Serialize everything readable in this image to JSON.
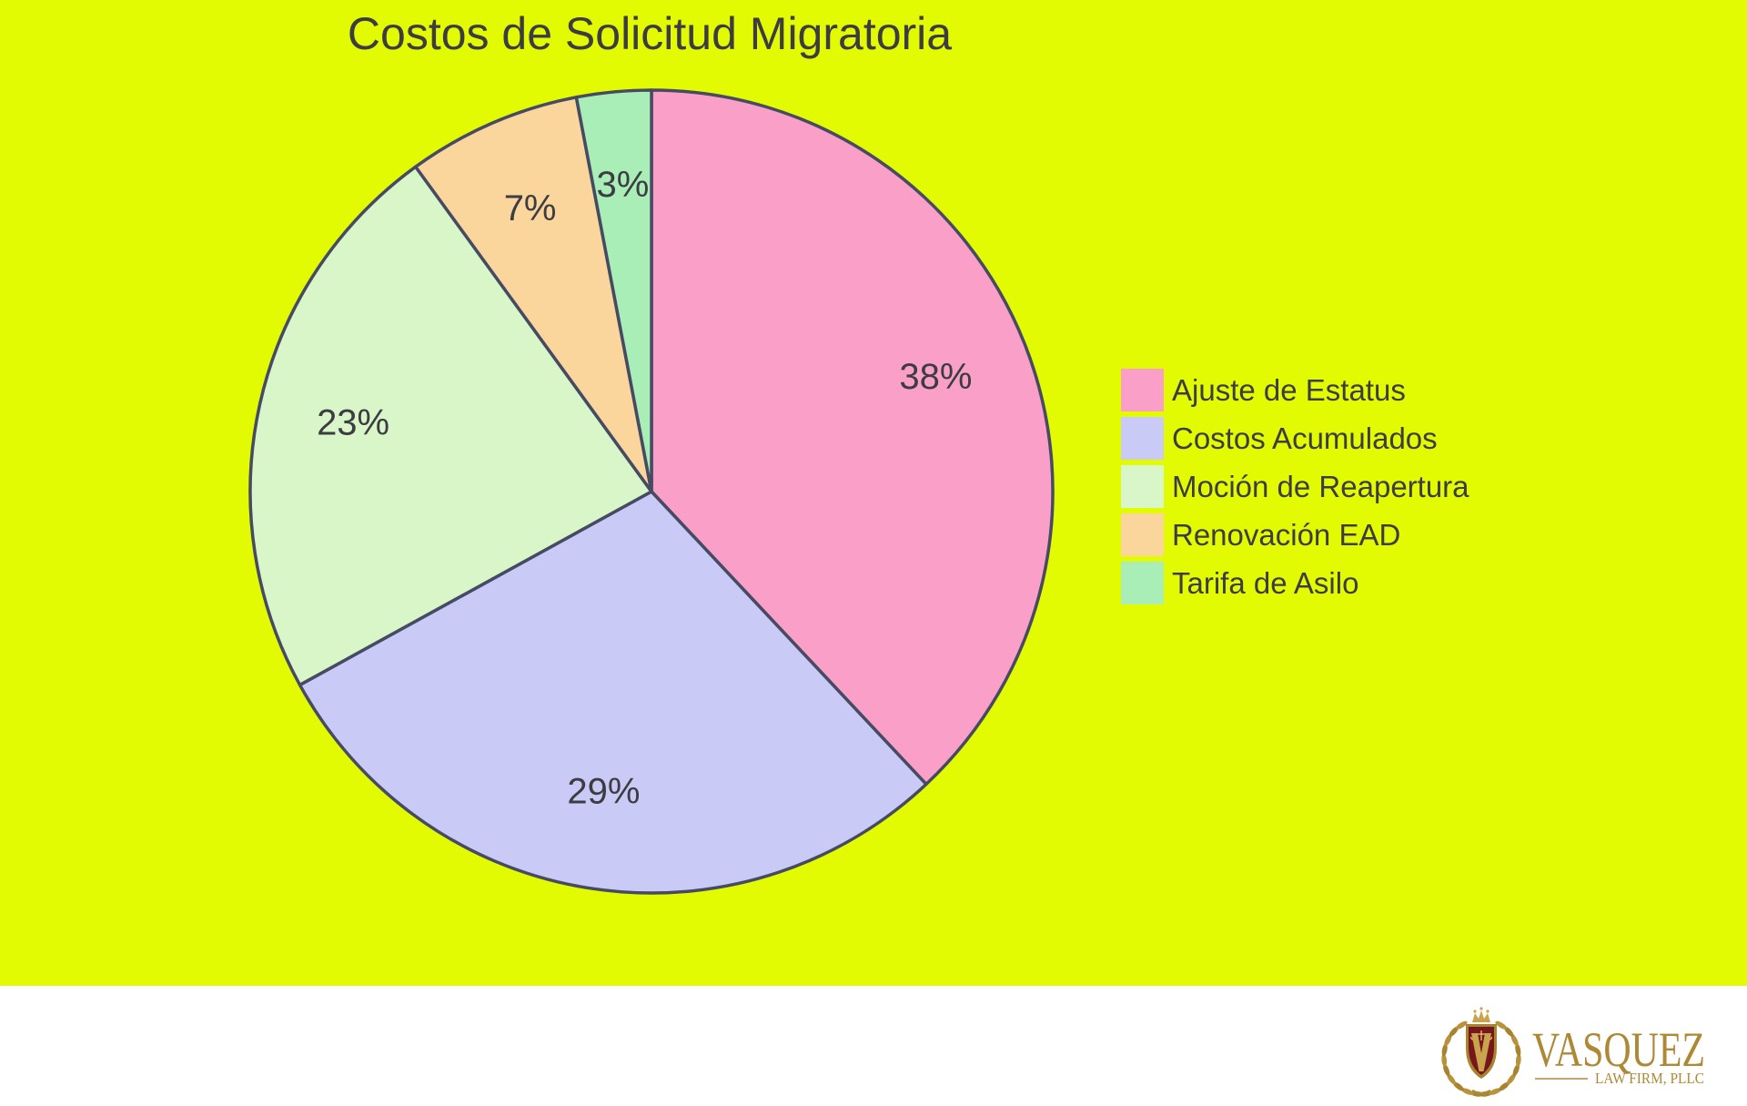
{
  "chart_data": {
    "type": "pie",
    "title": "Costos de Solicitud Migratoria",
    "labels": [
      "Ajuste de Estatus",
      "Costos Acumulados",
      "Moción de Reapertura",
      "Renovación EAD",
      "Tarifa de Asilo"
    ],
    "values": [
      38,
      29,
      23,
      7,
      3
    ],
    "value_labels": [
      "38%",
      "29%",
      "23%",
      "7%",
      "3%"
    ],
    "colors": [
      "#FAA0C8",
      "#C9CBF6",
      "#D8F6C7",
      "#FAD69D",
      "#A8EEB6"
    ],
    "slice_border_color": "#464A63",
    "label_text_color": "#3C3C42",
    "title_color": "#3C3C42",
    "background_color": "#E3FB02",
    "legend_position": "right",
    "start_angle": "top",
    "direction": "clockwise",
    "grid": false
  },
  "footer": {
    "background": "#FFFFFF",
    "logo": {
      "wordmark": "VASQUEZ",
      "subtitle": "LAW FIRM, PLLC",
      "gold_color": "#AD8936",
      "maroon_color": "#77161B"
    }
  }
}
